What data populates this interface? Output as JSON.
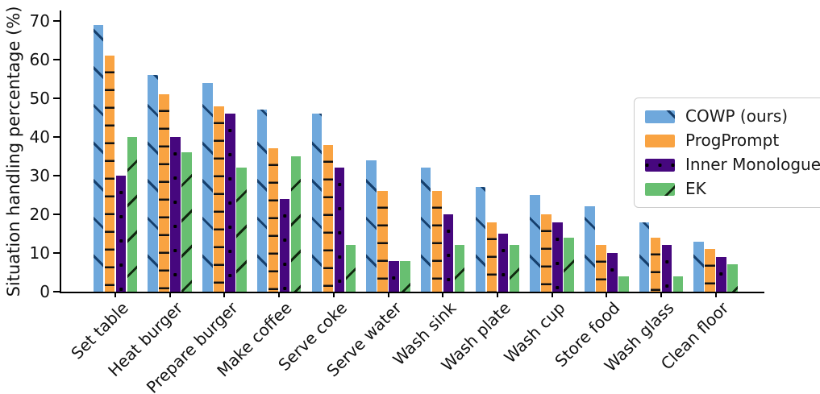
{
  "chart_data": {
    "type": "bar",
    "title": "",
    "ylabel": "Situation handling percentage (%)",
    "xlabel": "",
    "ylim": [
      0,
      70
    ],
    "yticks": [
      0,
      10,
      20,
      30,
      40,
      50,
      60,
      70
    ],
    "grid": false,
    "legend_position": "center-right",
    "categories": [
      "Set table",
      "Heat burger",
      "Prepare burger",
      "Make coffee",
      "Serve coke",
      "Serve water",
      "Wash sink",
      "Wash plate",
      "Wash cup",
      "Store food",
      "Wash glass",
      "Clean floor"
    ],
    "series": [
      {
        "name": "COWP (ours)",
        "color": "#6fa8dc",
        "hatch": "/",
        "hatch_color": "#16406e",
        "values": [
          69,
          56,
          54,
          47,
          46,
          34,
          32,
          27,
          25,
          22,
          18,
          13
        ]
      },
      {
        "name": "ProgPrompt",
        "color": "#f9a342",
        "hatch": "-",
        "hatch_color": "#111111",
        "values": [
          61,
          51,
          48,
          37,
          38,
          26,
          26,
          18,
          20,
          12,
          14,
          11
        ]
      },
      {
        "name": "Inner Monologue",
        "color": "#46077e",
        "hatch": ".",
        "hatch_color": "#000000",
        "values": [
          30,
          40,
          46,
          24,
          32,
          8,
          20,
          15,
          18,
          10,
          12,
          9
        ]
      },
      {
        "name": "EK",
        "color": "#68bf71",
        "hatch": "\\",
        "hatch_color": "#10280f",
        "values": [
          40,
          36,
          32,
          35,
          12,
          8,
          12,
          12,
          14,
          4,
          4,
          7
        ]
      }
    ]
  }
}
